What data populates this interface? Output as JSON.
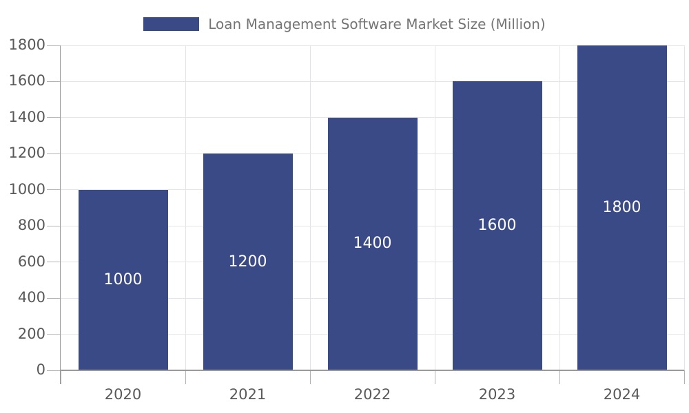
{
  "chart_data": {
    "type": "bar",
    "title": "Loan Management Software Market Size (Million)",
    "series_name": "Loan Management Software Market Size (Million)",
    "categories": [
      "2020",
      "2021",
      "2022",
      "2023",
      "2024"
    ],
    "values": [
      1000,
      1200,
      1400,
      1600,
      1800
    ],
    "value_labels": [
      "1000",
      "1200",
      "1400",
      "1600",
      "1800"
    ],
    "xlabel": "",
    "ylabel": "",
    "ylim": [
      0,
      1800
    ],
    "ytick_step": 200,
    "yticks": [
      0,
      200,
      400,
      600,
      800,
      1000,
      1200,
      1400,
      1600,
      1800
    ],
    "grid": true,
    "legend_position": "top",
    "colors": {
      "bar": "#3a4a87",
      "value_label": "#ffffff",
      "grid": "#e3e3e8",
      "axis": "#999999",
      "tick": "#b3b3b3",
      "axis_label": "#595959",
      "legend_text": "#757575",
      "background": "#ffffff"
    }
  }
}
